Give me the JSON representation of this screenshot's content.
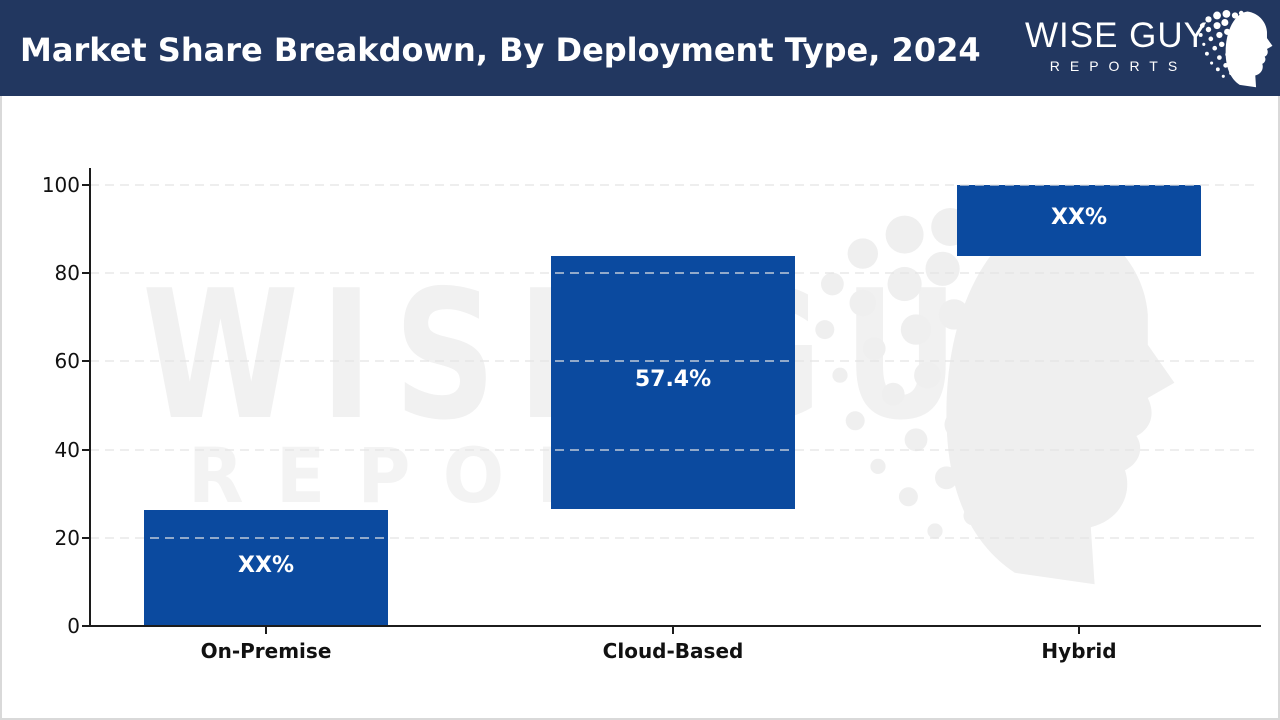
{
  "header": {
    "title": "Market Share Breakdown, By Deployment Type, 2024",
    "logo": {
      "line1": "WISE GUY",
      "line2": "REPORTS",
      "icon": "wiseguy-head-profile-dots-icon"
    }
  },
  "watermark": {
    "line1": "WISE GUY",
    "line2": "REPORTS",
    "icon": "wiseguy-head-profile-dots-icon"
  },
  "colors": {
    "header_bg": "#223760",
    "bar": "#0b4a9f",
    "grid": "#e4e4e4",
    "axis": "#1c1c1c",
    "bar_label_text": "#ffffff",
    "watermark": "#f1f1f1"
  },
  "chart_data": {
    "type": "bar",
    "subtype": "waterfall-stacked-percentage",
    "title": "Market Share Breakdown, By Deployment Type, 2024",
    "categories": [
      "On-Premise",
      "Cloud-Based",
      "Hybrid"
    ],
    "segments": [
      {
        "category": "On-Premise",
        "label": "XX%",
        "start": 0,
        "end": 26.2
      },
      {
        "category": "Cloud-Based",
        "label": "57.4%",
        "start": 26.6,
        "end": 84.0
      },
      {
        "category": "Hybrid",
        "label": "XX%",
        "start": 84.0,
        "end": 100
      }
    ],
    "values_shown": [
      "XX%",
      "57.4%",
      "XX%"
    ],
    "xlabel": "",
    "ylabel": "",
    "yticks": [
      0,
      20,
      40,
      60,
      80,
      100
    ],
    "ylim": [
      0,
      104
    ],
    "grid": "dashed-horizontal",
    "legend": "none"
  }
}
